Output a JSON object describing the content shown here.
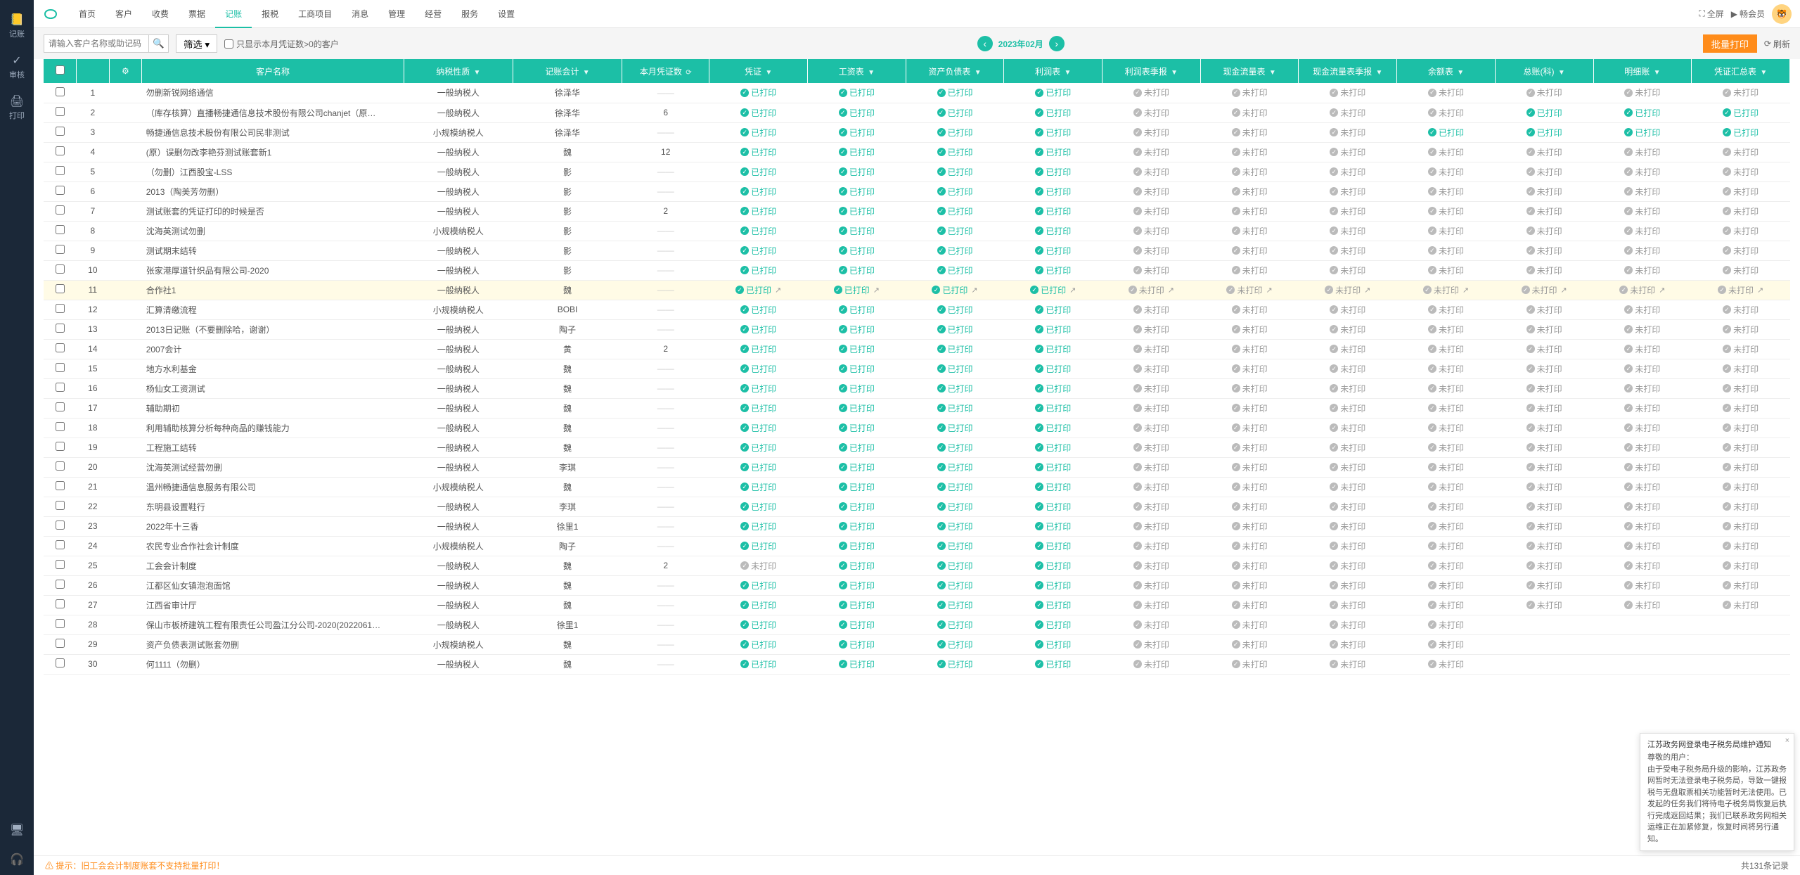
{
  "sidebar": {
    "items": [
      {
        "label": "记账",
        "icon": "📒"
      },
      {
        "label": "审核",
        "icon": "✓"
      },
      {
        "label": "打印",
        "icon": "🖨"
      }
    ],
    "bottom": [
      {
        "icon": "🖥"
      },
      {
        "icon": "🎧"
      }
    ]
  },
  "topnav": {
    "items": [
      "首页",
      "客户",
      "收费",
      "票据",
      "记账",
      "报税",
      "工商项目",
      "消息",
      "管理",
      "经营",
      "服务",
      "设置"
    ],
    "active": "记账",
    "right": {
      "fullscreen": "全屏",
      "member": "畅会员"
    }
  },
  "toolbar": {
    "search_placeholder": "请输入客户名称或助记码",
    "filter_label": "筛选",
    "only_zero_label": "只显示本月凭证数>0的客户",
    "month": "2023年02月",
    "bulk_print": "批量打印",
    "refresh": "刷新"
  },
  "columns": [
    "客户名称",
    "纳税性质",
    "记账会计",
    "本月凭证数",
    "凭证",
    "工资表",
    "资产负债表",
    "利润表",
    "利润表季报",
    "现金流量表",
    "现金流量表季报",
    "余额表",
    "总账(科)",
    "明细账",
    "凭证汇总表"
  ],
  "status_labels": {
    "printed": "已打印",
    "unprinted": "未打印"
  },
  "rows": [
    {
      "idx": 1,
      "name": "勿删新锐网络通信",
      "tax": "一般纳税人",
      "acct": "徐泽华",
      "vouch": "",
      "s": [
        "p",
        "p",
        "p",
        "p",
        "u",
        "u",
        "u",
        "u",
        "u",
        "u",
        "u"
      ],
      "hl": false,
      "link": false
    },
    {
      "idx": 2,
      "name": "（库存核算）直播畅捷通信息技术股份有限公司chanjet（原…",
      "tax": "一般纳税人",
      "acct": "徐泽华",
      "vouch": "6",
      "s": [
        "p",
        "p",
        "p",
        "p",
        "u",
        "u",
        "u",
        "u",
        "p",
        "p",
        "p"
      ],
      "hl": false,
      "link": false
    },
    {
      "idx": 3,
      "name": "畅捷通信息技术股份有限公司民非测试",
      "tax": "小规模纳税人",
      "acct": "徐泽华",
      "vouch": "",
      "s": [
        "p",
        "p",
        "p",
        "p",
        "u",
        "u",
        "u",
        "p",
        "p",
        "p",
        "p"
      ],
      "hl": false,
      "link": false
    },
    {
      "idx": 4,
      "name": "(原）误删勿改李艳芬测试账套新1",
      "tax": "一般纳税人",
      "acct": "魏",
      "vouch": "12",
      "s": [
        "p",
        "p",
        "p",
        "p",
        "u",
        "u",
        "u",
        "u",
        "u",
        "u",
        "u"
      ],
      "hl": false,
      "link": false
    },
    {
      "idx": 5,
      "name": "（勿删）江西股宝-LSS",
      "tax": "一般纳税人",
      "acct": "影",
      "vouch": "",
      "s": [
        "p",
        "p",
        "p",
        "p",
        "u",
        "u",
        "u",
        "u",
        "u",
        "u",
        "u"
      ],
      "hl": false,
      "link": false
    },
    {
      "idx": 6,
      "name": "2013（陶美芳勿删）",
      "tax": "一般纳税人",
      "acct": "影",
      "vouch": "",
      "s": [
        "p",
        "p",
        "p",
        "p",
        "u",
        "u",
        "u",
        "u",
        "u",
        "u",
        "u"
      ],
      "hl": false,
      "link": false
    },
    {
      "idx": 7,
      "name": "测试账套的凭证打印的时候是否",
      "tax": "一般纳税人",
      "acct": "影",
      "vouch": "2",
      "s": [
        "p",
        "p",
        "p",
        "p",
        "u",
        "u",
        "u",
        "u",
        "u",
        "u",
        "u"
      ],
      "hl": false,
      "link": false
    },
    {
      "idx": 8,
      "name": "沈海英测试勿删",
      "tax": "小规模纳税人",
      "acct": "影",
      "vouch": "",
      "s": [
        "p",
        "p",
        "p",
        "p",
        "u",
        "u",
        "u",
        "u",
        "u",
        "u",
        "u"
      ],
      "hl": false,
      "link": false
    },
    {
      "idx": 9,
      "name": "测试期末结转",
      "tax": "一般纳税人",
      "acct": "影",
      "vouch": "",
      "s": [
        "p",
        "p",
        "p",
        "p",
        "u",
        "u",
        "u",
        "u",
        "u",
        "u",
        "u"
      ],
      "hl": false,
      "link": false
    },
    {
      "idx": 10,
      "name": "张家港厚道针织品有限公司-2020",
      "tax": "一般纳税人",
      "acct": "影",
      "vouch": "",
      "s": [
        "p",
        "p",
        "p",
        "p",
        "u",
        "u",
        "u",
        "u",
        "u",
        "u",
        "u"
      ],
      "hl": false,
      "link": false
    },
    {
      "idx": 11,
      "name": "合作社1",
      "tax": "一般纳税人",
      "acct": "魏",
      "vouch": "",
      "s": [
        "p",
        "p",
        "p",
        "p",
        "u",
        "u",
        "u",
        "u",
        "u",
        "u",
        "u"
      ],
      "hl": true,
      "link": true
    },
    {
      "idx": 12,
      "name": "汇算清缴流程",
      "tax": "小规模纳税人",
      "acct": "BOBI",
      "vouch": "",
      "s": [
        "p",
        "p",
        "p",
        "p",
        "u",
        "u",
        "u",
        "u",
        "u",
        "u",
        "u"
      ],
      "hl": false,
      "link": false
    },
    {
      "idx": 13,
      "name": "2013日记账（不要删除哈，谢谢）",
      "tax": "一般纳税人",
      "acct": "陶子",
      "vouch": "",
      "s": [
        "p",
        "p",
        "p",
        "p",
        "u",
        "u",
        "u",
        "u",
        "u",
        "u",
        "u"
      ],
      "hl": false,
      "link": false
    },
    {
      "idx": 14,
      "name": "2007会计",
      "tax": "一般纳税人",
      "acct": "黄",
      "vouch": "2",
      "s": [
        "p",
        "p",
        "p",
        "p",
        "u",
        "u",
        "u",
        "u",
        "u",
        "u",
        "u"
      ],
      "hl": false,
      "link": false
    },
    {
      "idx": 15,
      "name": "地方水利基金",
      "tax": "一般纳税人",
      "acct": "魏",
      "vouch": "",
      "s": [
        "p",
        "p",
        "p",
        "p",
        "u",
        "u",
        "u",
        "u",
        "u",
        "u",
        "u"
      ],
      "hl": false,
      "link": false
    },
    {
      "idx": 16,
      "name": "杨仙女工资测试",
      "tax": "一般纳税人",
      "acct": "魏",
      "vouch": "",
      "s": [
        "p",
        "p",
        "p",
        "p",
        "u",
        "u",
        "u",
        "u",
        "u",
        "u",
        "u"
      ],
      "hl": false,
      "link": false
    },
    {
      "idx": 17,
      "name": "辅助期初",
      "tax": "一般纳税人",
      "acct": "魏",
      "vouch": "",
      "s": [
        "p",
        "p",
        "p",
        "p",
        "u",
        "u",
        "u",
        "u",
        "u",
        "u",
        "u"
      ],
      "hl": false,
      "link": false
    },
    {
      "idx": 18,
      "name": "利用辅助核算分析每种商品的赚钱能力",
      "tax": "一般纳税人",
      "acct": "魏",
      "vouch": "",
      "s": [
        "p",
        "p",
        "p",
        "p",
        "u",
        "u",
        "u",
        "u",
        "u",
        "u",
        "u"
      ],
      "hl": false,
      "link": false
    },
    {
      "idx": 19,
      "name": "工程施工结转",
      "tax": "一般纳税人",
      "acct": "魏",
      "vouch": "",
      "s": [
        "p",
        "p",
        "p",
        "p",
        "u",
        "u",
        "u",
        "u",
        "u",
        "u",
        "u"
      ],
      "hl": false,
      "link": false
    },
    {
      "idx": 20,
      "name": "沈海英测试经营勿删",
      "tax": "一般纳税人",
      "acct": "李琪",
      "vouch": "",
      "s": [
        "p",
        "p",
        "p",
        "p",
        "u",
        "u",
        "u",
        "u",
        "u",
        "u",
        "u"
      ],
      "hl": false,
      "link": false
    },
    {
      "idx": 21,
      "name": "温州畅捷通信息服务有限公司",
      "tax": "小规模纳税人",
      "acct": "魏",
      "vouch": "",
      "s": [
        "p",
        "p",
        "p",
        "p",
        "u",
        "u",
        "u",
        "u",
        "u",
        "u",
        "u"
      ],
      "hl": false,
      "link": false
    },
    {
      "idx": 22,
      "name": "东明县设置鞋行",
      "tax": "一般纳税人",
      "acct": "李琪",
      "vouch": "",
      "s": [
        "p",
        "p",
        "p",
        "p",
        "u",
        "u",
        "u",
        "u",
        "u",
        "u",
        "u"
      ],
      "hl": false,
      "link": false
    },
    {
      "idx": 23,
      "name": "2022年十三香",
      "tax": "一般纳税人",
      "acct": "徐里1",
      "vouch": "",
      "s": [
        "p",
        "p",
        "p",
        "p",
        "u",
        "u",
        "u",
        "u",
        "u",
        "u",
        "u"
      ],
      "hl": false,
      "link": false
    },
    {
      "idx": 24,
      "name": "农民专业合作社会计制度",
      "tax": "小规模纳税人",
      "acct": "陶子",
      "vouch": "",
      "s": [
        "p",
        "p",
        "p",
        "p",
        "u",
        "u",
        "u",
        "u",
        "u",
        "u",
        "u"
      ],
      "hl": false,
      "link": false
    },
    {
      "idx": 25,
      "name": "工会会计制度",
      "tax": "一般纳税人",
      "acct": "魏",
      "vouch": "2",
      "s": [
        "u",
        "p",
        "p",
        "p",
        "u",
        "u",
        "u",
        "u",
        "u",
        "u",
        "u"
      ],
      "hl": false,
      "link": false
    },
    {
      "idx": 26,
      "name": "江都区仙女镇泡泡面馆",
      "tax": "一般纳税人",
      "acct": "魏",
      "vouch": "",
      "s": [
        "p",
        "p",
        "p",
        "p",
        "u",
        "u",
        "u",
        "u",
        "u",
        "u",
        "u"
      ],
      "hl": false,
      "link": false
    },
    {
      "idx": 27,
      "name": "江西省审计厅",
      "tax": "一般纳税人",
      "acct": "魏",
      "vouch": "",
      "s": [
        "p",
        "p",
        "p",
        "p",
        "u",
        "u",
        "u",
        "u",
        "u",
        "u",
        "u"
      ],
      "hl": false,
      "link": false
    },
    {
      "idx": 28,
      "name": "保山市板桥建筑工程有限责任公司盈江分公司-2020(2022061…",
      "tax": "一般纳税人",
      "acct": "徐里1",
      "vouch": "",
      "s": [
        "p",
        "p",
        "p",
        "p",
        "u",
        "u",
        "u",
        "u",
        "",
        "",
        ""
      ],
      "hl": false,
      "link": false
    },
    {
      "idx": 29,
      "name": "资产负债表测试账套勿删",
      "tax": "小规模纳税人",
      "acct": "魏",
      "vouch": "",
      "s": [
        "p",
        "p",
        "p",
        "p",
        "u",
        "u",
        "u",
        "u",
        "",
        "",
        ""
      ],
      "hl": false,
      "link": false
    },
    {
      "idx": 30,
      "name": "何1111（勿删）",
      "tax": "一般纳税人",
      "acct": "魏",
      "vouch": "",
      "s": [
        "p",
        "p",
        "p",
        "p",
        "u",
        "u",
        "u",
        "u",
        "",
        "",
        ""
      ],
      "hl": false,
      "link": false
    }
  ],
  "footer": {
    "warning": "提示：旧工会会计制度账套不支持批量打印！",
    "count": "共131条记录"
  },
  "notice": {
    "title": "江苏政务网登录电子税务局维护通知",
    "body": "尊敬的用户：\n由于受电子税务局升级的影响，江苏政务网暂时无法登录电子税务局，导致一键报税与无盘取票相关功能暂时无法使用。已发起的任务我们将待电子税务局恢复后执行完成返回结果；我们已联系政务网相关运维正在加紧修复，恢复时间将另行通知。"
  }
}
